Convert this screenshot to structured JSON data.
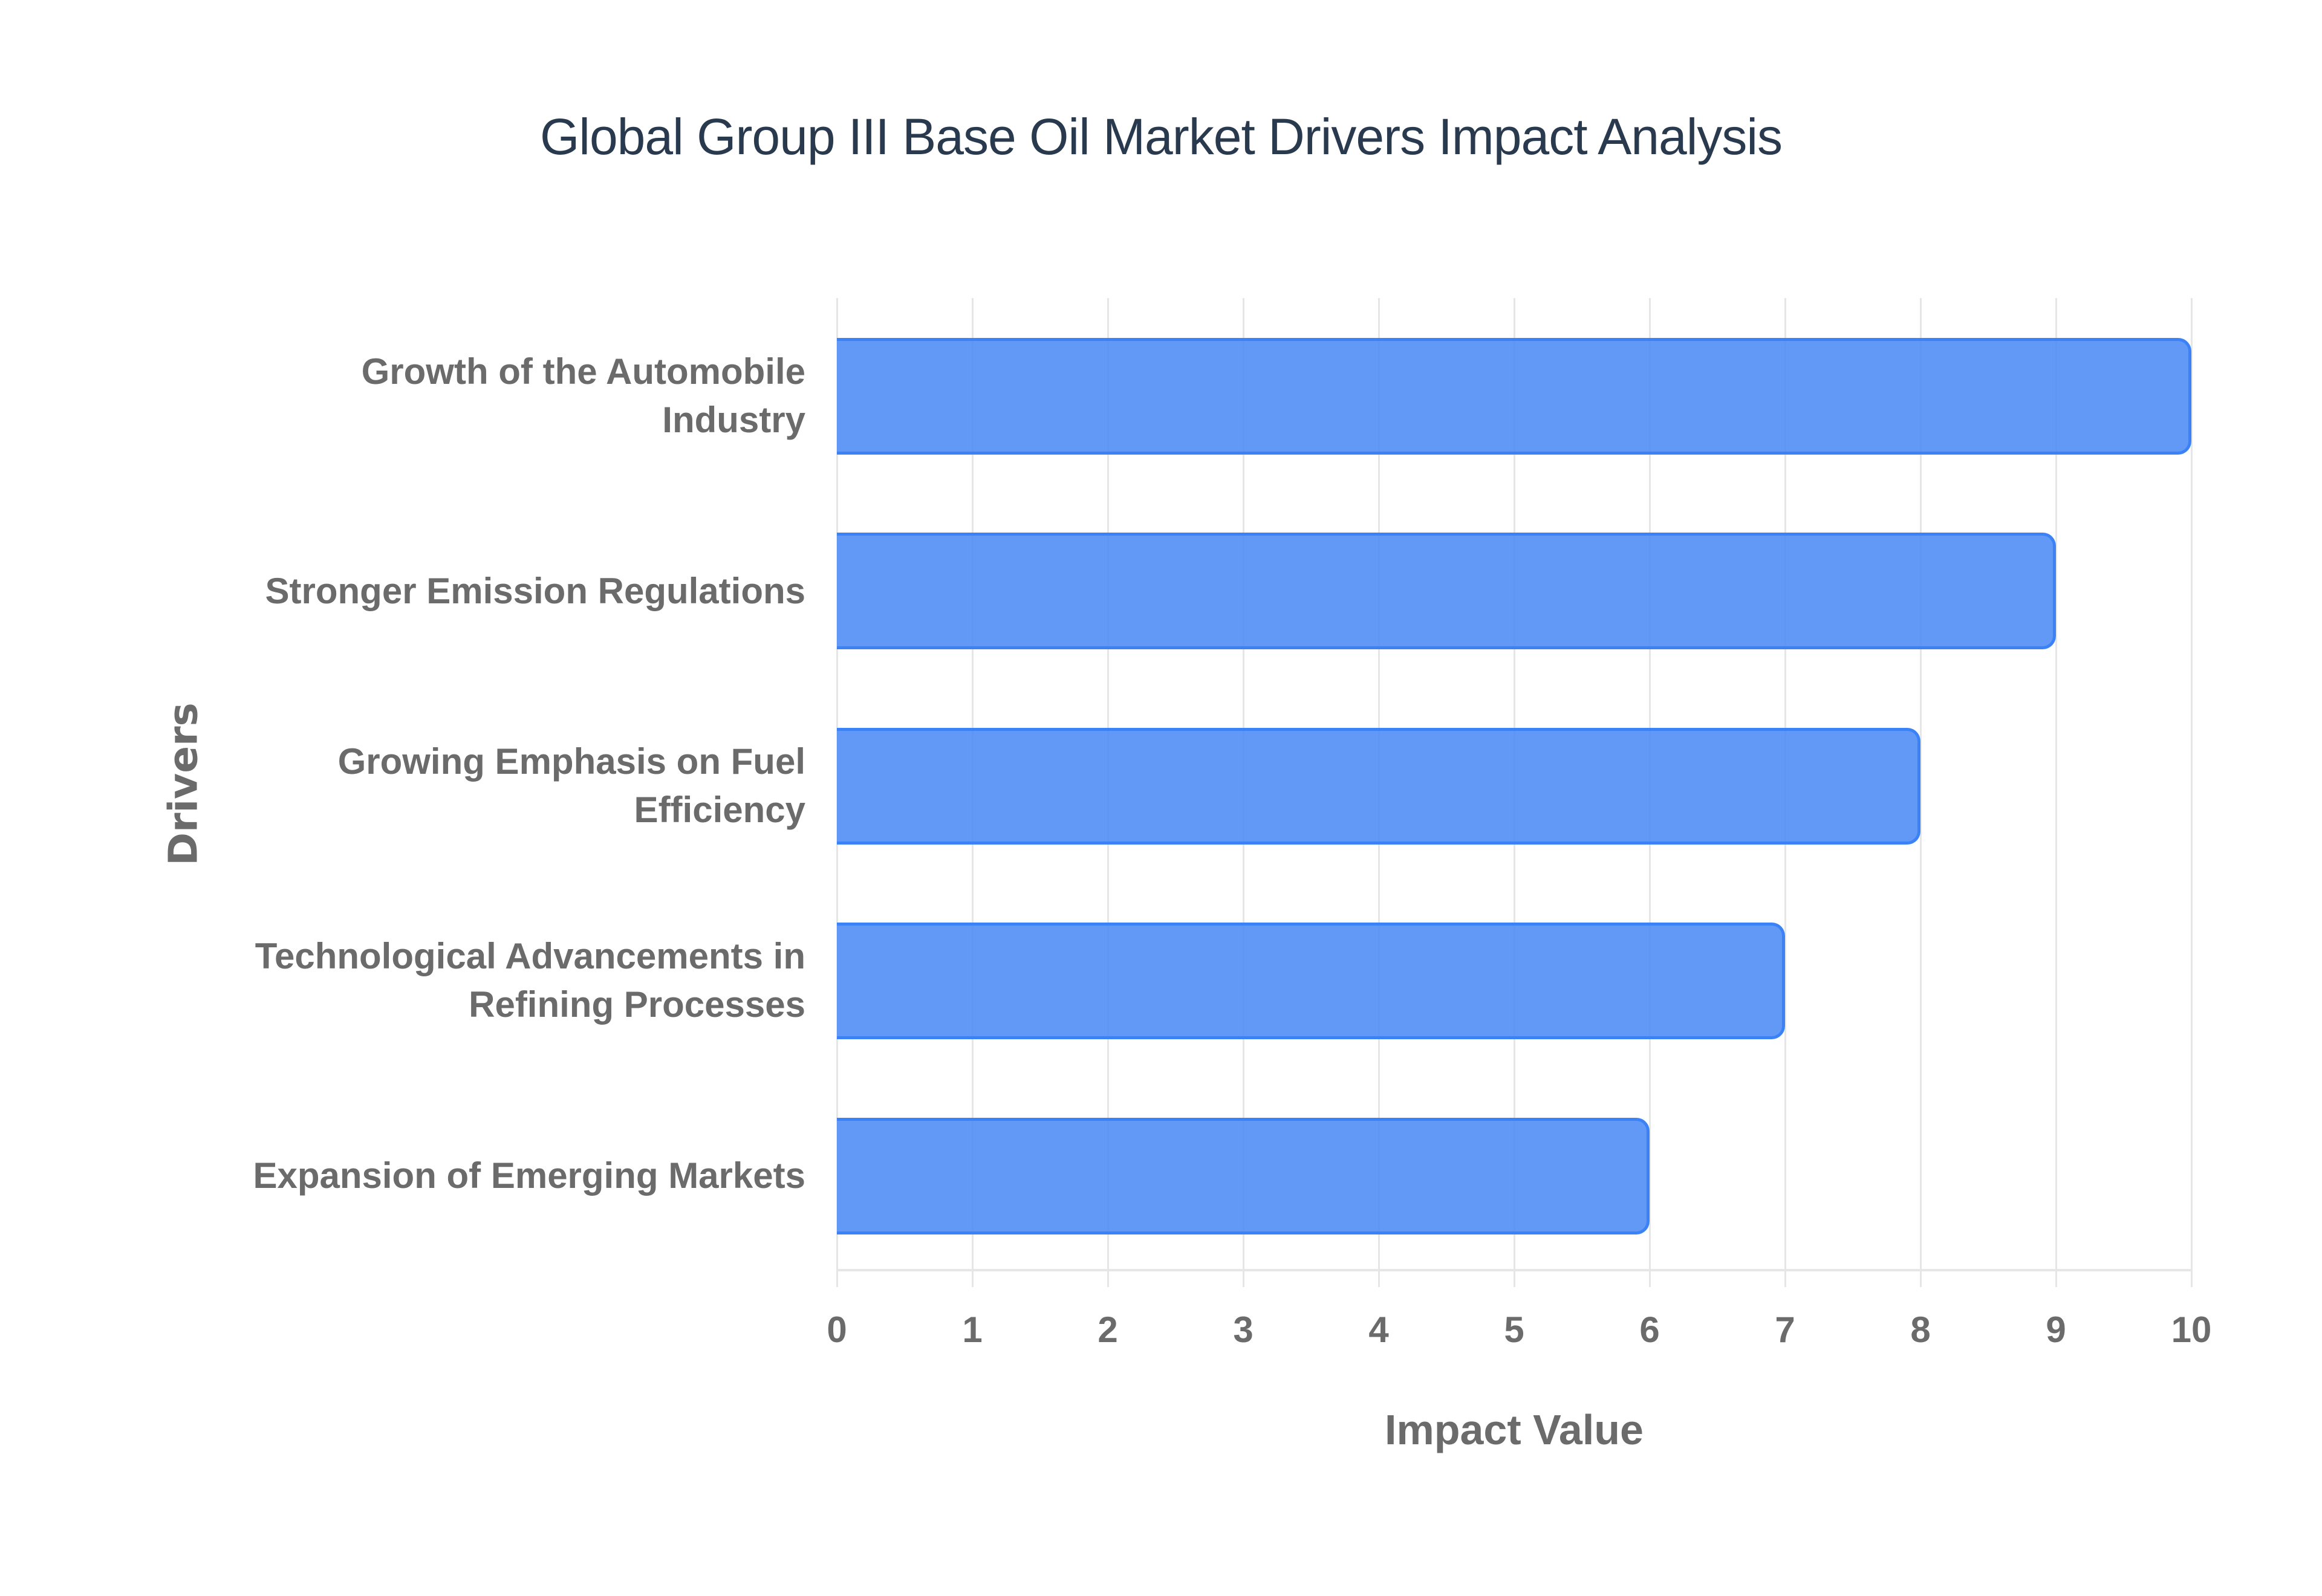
{
  "chart_data": {
    "type": "bar",
    "orientation": "horizontal",
    "title": "Global Group III Base Oil Market Drivers Impact Analysis",
    "xlabel": "Impact Value",
    "ylabel": "Drivers",
    "xlim": [
      0,
      10
    ],
    "xticks": [
      "0",
      "1",
      "2",
      "3",
      "4",
      "5",
      "6",
      "7",
      "8",
      "9",
      "10"
    ],
    "grid": true,
    "legend": null,
    "categories": [
      "Growth of the Automobile Industry",
      "Stronger Emission Regulations",
      "Growing Emphasis on Fuel Efficiency",
      "Technological Advancements in Refining Processes",
      "Expansion of Emerging Markets"
    ],
    "category_lines": [
      [
        "Growth of the Automobile",
        "Industry"
      ],
      [
        "Stronger Emission Regulations"
      ],
      [
        "Growing Emphasis on Fuel",
        "Efficiency"
      ],
      [
        "Technological Advancements in",
        "Refining Processes"
      ],
      [
        "Expansion of Emerging Markets"
      ]
    ],
    "values": [
      10,
      9,
      8,
      7,
      6
    ],
    "colors": {
      "bar_fill": "#6199F5",
      "bar_border": "#3B82F6",
      "grid": "#E6E6E6",
      "text": "#6B6B6B",
      "title": "#2A3A4E"
    }
  }
}
